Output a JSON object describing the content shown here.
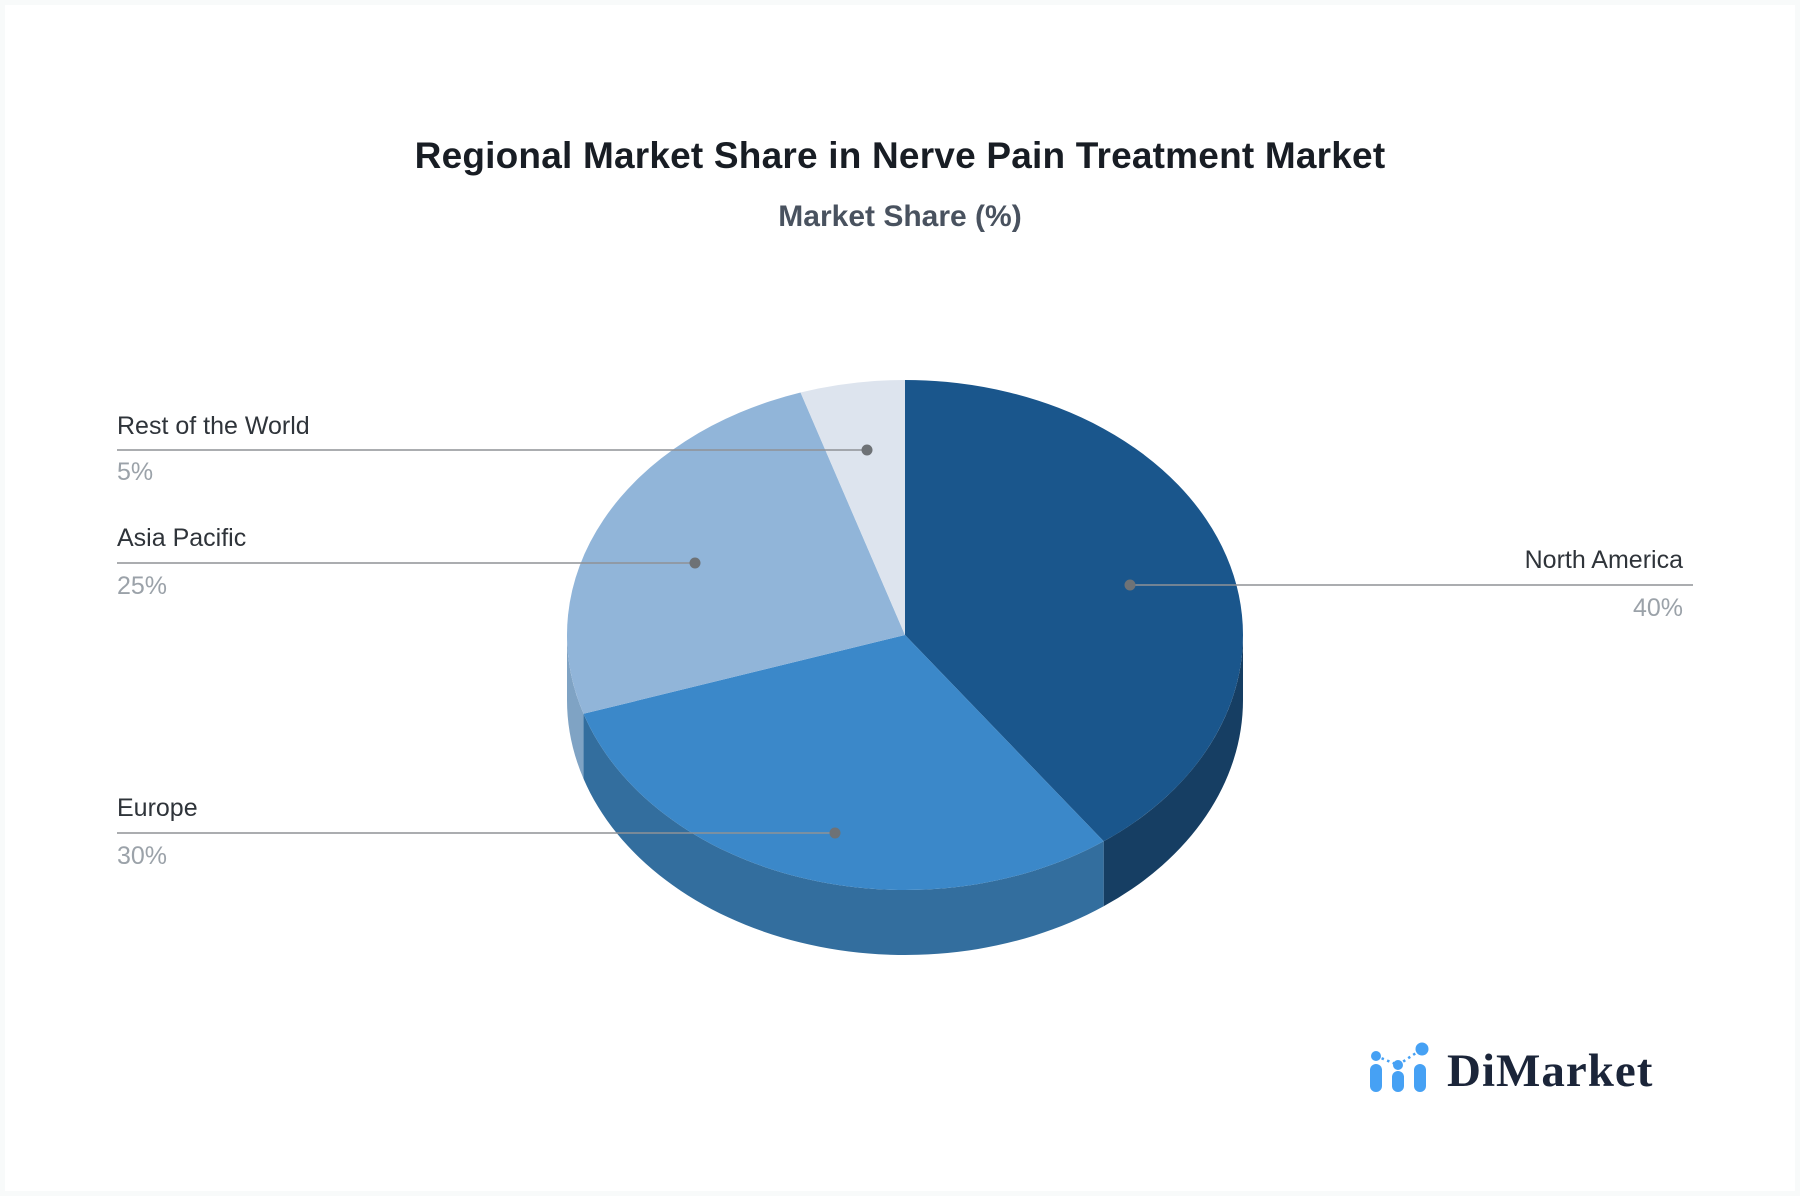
{
  "chart_data": {
    "type": "pie",
    "style": "3d",
    "title": "Regional Market Share in Nerve Pain Treatment Market",
    "subtitle": "Market Share (%)",
    "unit": "%",
    "start_angle_deg": 0,
    "direction": "clockwise",
    "legend_position": "callout-labels",
    "background": "#ffffff",
    "slices": [
      {
        "label": "North America",
        "value": 40,
        "pct_label": "40%",
        "color": "#1a568c",
        "side_color": "#163e63"
      },
      {
        "label": "Europe",
        "value": 30,
        "pct_label": "30%",
        "color": "#3b88c9",
        "side_color": "#336e9e"
      },
      {
        "label": "Asia Pacific",
        "value": 25,
        "pct_label": "25%",
        "color": "#91b5d9",
        "side_color": "#7fa3c4"
      },
      {
        "label": "Rest of the World",
        "value": 5,
        "pct_label": "5%",
        "color": "#dde4ee",
        "side_color": "#c3ccd9"
      }
    ],
    "callout_line_color": "#8f9296",
    "callout_dot_color": "#6e7276"
  },
  "branding": {
    "logo_text": "DiMarket",
    "logo_icon": "bar-line-chart-icon",
    "logo_icon_color": "#46a1f4",
    "logo_text_color": "#1b2539"
  }
}
